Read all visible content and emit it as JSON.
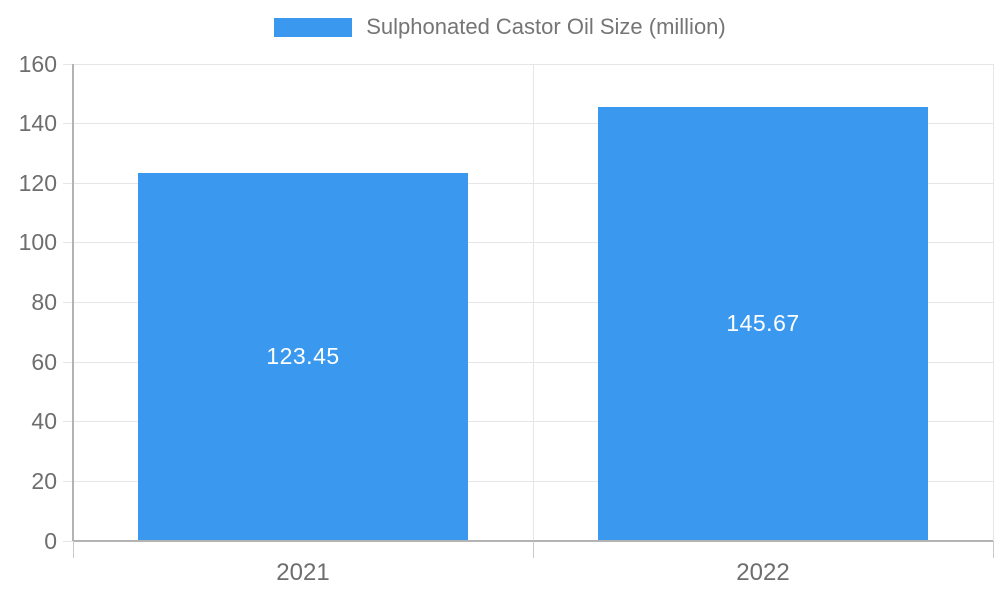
{
  "chart_data": {
    "type": "bar",
    "title": "Sulphonated Castor Oil Size (million)",
    "legend_label": "Sulphonated Castor Oil Size (million)",
    "legend_position": "top",
    "categories": [
      "2021",
      "2022"
    ],
    "series": [
      {
        "name": "Sulphonated Castor Oil Size (million)",
        "values": [
          123.45,
          145.67
        ]
      }
    ],
    "value_labels": [
      "123.45",
      "145.67"
    ],
    "xlabel": "",
    "ylabel": "",
    "ylim": [
      0,
      160
    ],
    "ytick_step": 20,
    "ytick_labels": [
      "0",
      "20",
      "40",
      "60",
      "80",
      "100",
      "120",
      "140",
      "160"
    ],
    "grid": true,
    "colors": {
      "bar": "#3a99ef",
      "grid": "#e6e6e6",
      "axis": "#b3b3b3",
      "tick": "#c9c9c9",
      "tick_text": "#6e6e6e",
      "legend_text": "#757575",
      "value_text": "#ffffff",
      "background": "#ffffff"
    }
  }
}
